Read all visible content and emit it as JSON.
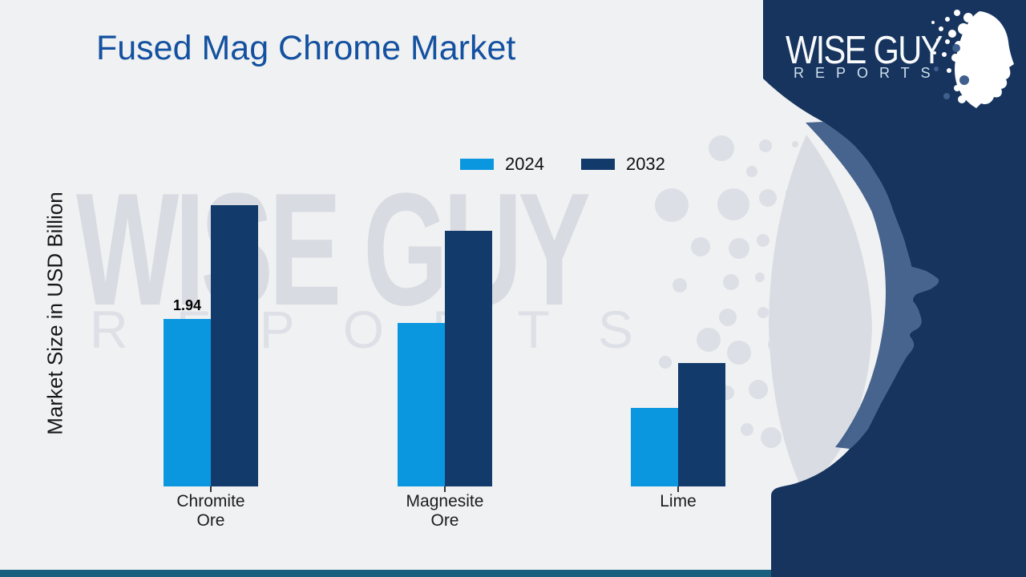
{
  "page": {
    "background": "#f0f1f2",
    "bottom_strip_color": "#1a5f7e"
  },
  "title": {
    "text": "Fused Mag Chrome Market",
    "color": "#1451a0"
  },
  "y_axis_label": "Market Size in USD Billion",
  "watermark": {
    "line1": "WISE GUY",
    "line2": "REPORTS"
  },
  "logo": {
    "line1": "WISE GUY",
    "line2": "REPORTS",
    "panel_color": "#16345e"
  },
  "legend": {
    "items": [
      {
        "label": "2024",
        "color": "#0a97e0"
      },
      {
        "label": "2032",
        "color": "#123a6b"
      }
    ]
  },
  "chart_data": {
    "type": "bar",
    "title": "Fused Mag Chrome Market",
    "xlabel": "",
    "ylabel": "Market Size in USD Billion",
    "categories": [
      "Chromite Ore",
      "Magnesite Ore",
      "Lime"
    ],
    "series": [
      {
        "name": "2024",
        "color": "#0a97e0",
        "values": [
          1.94,
          1.89,
          0.91
        ]
      },
      {
        "name": "2032",
        "color": "#123a6b",
        "values": [
          3.26,
          2.96,
          1.43
        ]
      }
    ],
    "value_labels": [
      {
        "series": "2024",
        "category": "Chromite Ore",
        "text": "1.94"
      }
    ],
    "ylim": [
      0,
      3.6
    ],
    "grid": false,
    "legend_position": "top-right"
  }
}
